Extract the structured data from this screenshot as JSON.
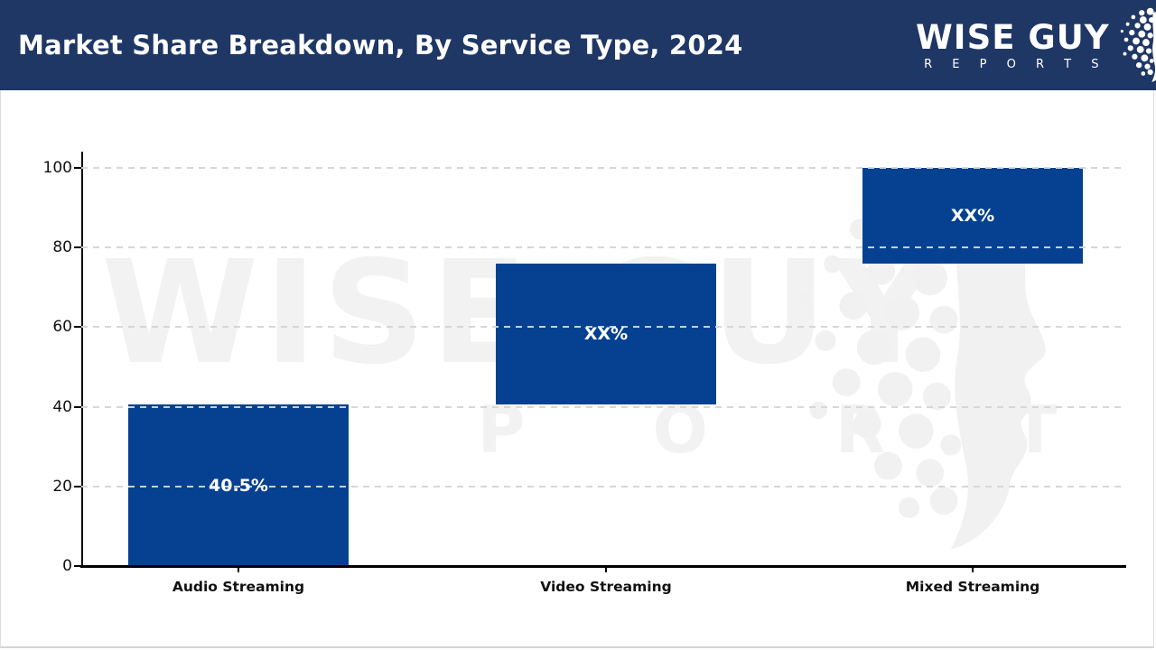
{
  "header": {
    "title": "Market Share Breakdown, By Service Type, 2024",
    "logo": {
      "line1": "WISE GUY",
      "line2": "R E P O R T S"
    }
  },
  "watermark": {
    "line1": "WISE GUY",
    "line2": "R E P O R T S"
  },
  "colors": {
    "header_bg": "#1f3765",
    "bar": "#064191",
    "grid": "#d5d5d5",
    "axis": "#000000",
    "bar_label": "#ffffff",
    "watermark": "#f2f2f2"
  },
  "chart_data": {
    "type": "bar",
    "subtype": "floating-cumulative-percentage",
    "title": "Market Share Breakdown, By Service Type, 2024",
    "categories": [
      "Audio Streaming",
      "Video Streaming",
      "Mixed Streaming"
    ],
    "segments": [
      {
        "category": "Audio Streaming",
        "from": 0,
        "to": 40.5,
        "value": 40.5,
        "label": "40.5%"
      },
      {
        "category": "Video Streaming",
        "from": 40.5,
        "to": 76,
        "value": 35.5,
        "label": "XX%"
      },
      {
        "category": "Mixed Streaming",
        "from": 76,
        "to": 100,
        "value": 24,
        "label": "XX%"
      }
    ],
    "xlabel": "",
    "ylabel": "",
    "ylim": [
      0,
      100
    ],
    "yticks": [
      0,
      20,
      40,
      60,
      80,
      100
    ],
    "grid": "horizontal dashed, drawn over bars",
    "legend": "none"
  }
}
